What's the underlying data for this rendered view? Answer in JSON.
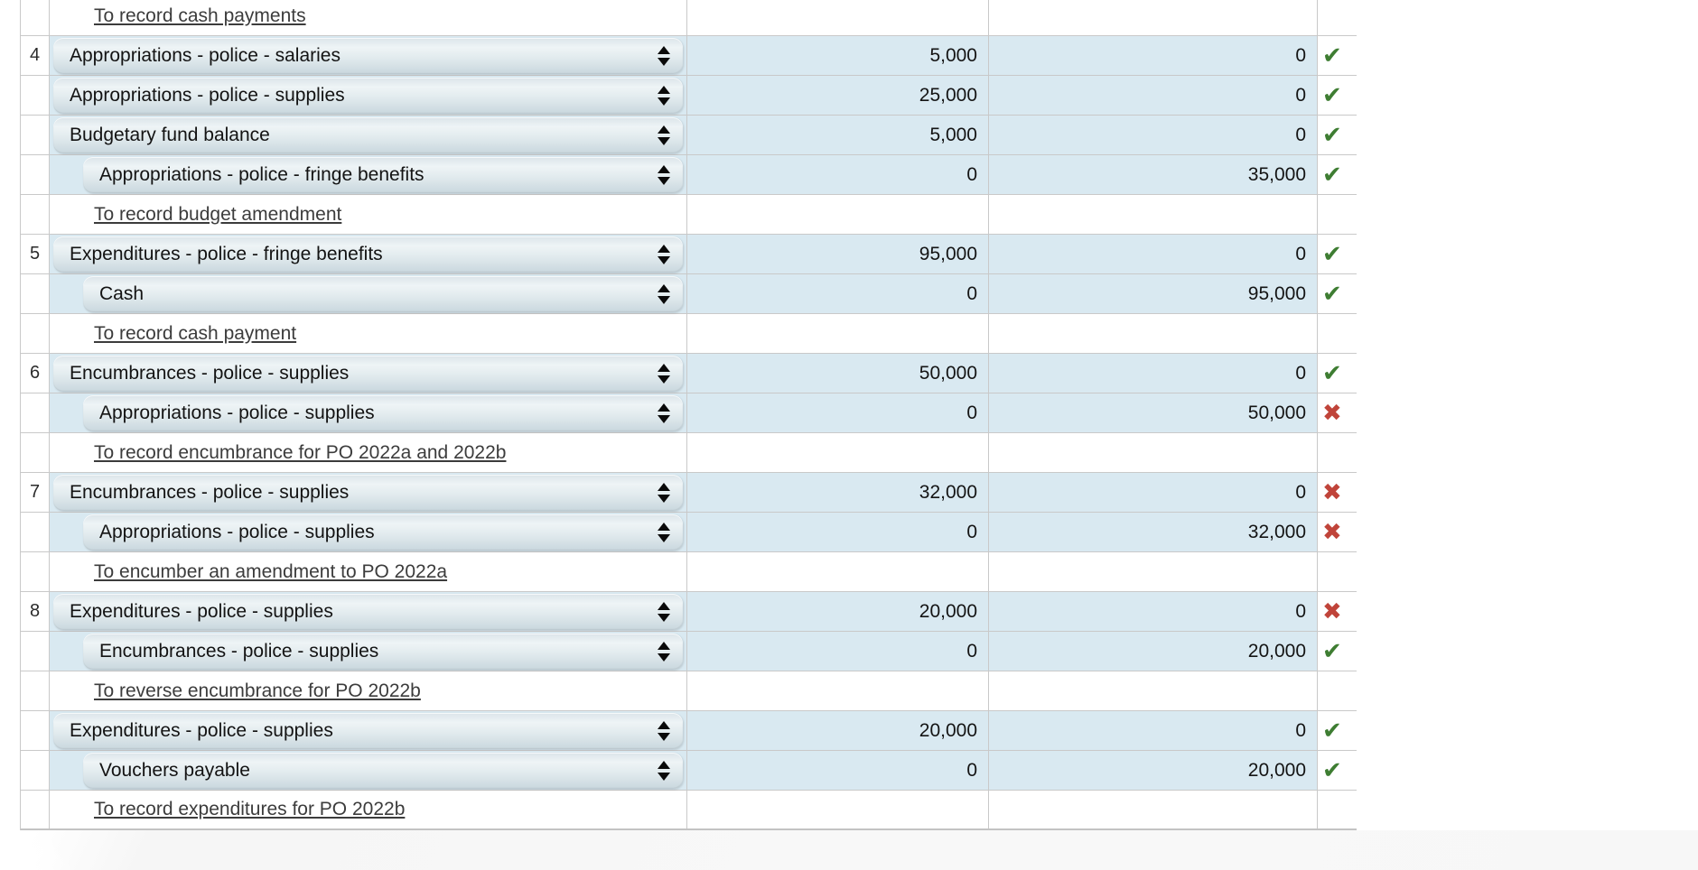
{
  "marks": {
    "correct": "✔",
    "incorrect": "✖"
  },
  "colors": {
    "correct_green": "#3e7d32",
    "incorrect_red": "#c0443a",
    "entry_row_blue": "#d9e9f1"
  },
  "table": {
    "rows": [
      {
        "type": "memo",
        "text": "To record cash payments"
      },
      {
        "type": "entry",
        "num": "4",
        "account": "Appropriations - police - salaries",
        "indent": false,
        "debit": "5,000",
        "credit": "0",
        "mark": "correct"
      },
      {
        "type": "entry",
        "num": "",
        "account": "Appropriations - police - supplies",
        "indent": false,
        "debit": "25,000",
        "credit": "0",
        "mark": "correct"
      },
      {
        "type": "entry",
        "num": "",
        "account": "Budgetary fund balance",
        "indent": false,
        "debit": "5,000",
        "credit": "0",
        "mark": "correct"
      },
      {
        "type": "entry",
        "num": "",
        "account": "Appropriations - police - fringe benefits",
        "indent": true,
        "debit": "0",
        "credit": "35,000",
        "mark": "correct"
      },
      {
        "type": "memo",
        "text": "To record budget amendment"
      },
      {
        "type": "entry",
        "num": "5",
        "account": "Expenditures - police - fringe benefits",
        "indent": false,
        "debit": "95,000",
        "credit": "0",
        "mark": "correct"
      },
      {
        "type": "entry",
        "num": "",
        "account": "Cash",
        "indent": true,
        "debit": "0",
        "credit": "95,000",
        "mark": "correct"
      },
      {
        "type": "memo",
        "text": "To record cash payment"
      },
      {
        "type": "entry",
        "num": "6",
        "account": "Encumbrances - police - supplies",
        "indent": false,
        "debit": "50,000",
        "credit": "0",
        "mark": "correct"
      },
      {
        "type": "entry",
        "num": "",
        "account": "Appropriations - police - supplies",
        "indent": true,
        "debit": "0",
        "credit": "50,000",
        "mark": "incorrect"
      },
      {
        "type": "memo",
        "text": "To record encumbrance for PO 2022a and 2022b"
      },
      {
        "type": "entry",
        "num": "7",
        "account": "Encumbrances - police - supplies",
        "indent": false,
        "debit": "32,000",
        "credit": "0",
        "mark": "incorrect"
      },
      {
        "type": "entry",
        "num": "",
        "account": "Appropriations - police - supplies",
        "indent": true,
        "debit": "0",
        "credit": "32,000",
        "mark": "incorrect"
      },
      {
        "type": "memo",
        "text": "To encumber an amendment to PO 2022a"
      },
      {
        "type": "entry",
        "num": "8",
        "account": "Expenditures - police - supplies",
        "indent": false,
        "debit": "20,000",
        "credit": "0",
        "mark": "incorrect"
      },
      {
        "type": "entry",
        "num": "",
        "account": "Encumbrances - police - supplies",
        "indent": true,
        "debit": "0",
        "credit": "20,000",
        "mark": "correct"
      },
      {
        "type": "memo",
        "text": "To reverse encumbrance for PO 2022b"
      },
      {
        "type": "entry",
        "num": "",
        "account": "Expenditures - police - supplies",
        "indent": false,
        "debit": "20,000",
        "credit": "0",
        "mark": "correct"
      },
      {
        "type": "entry",
        "num": "",
        "account": "Vouchers payable",
        "indent": true,
        "debit": "0",
        "credit": "20,000",
        "mark": "correct"
      },
      {
        "type": "memo",
        "text": "To record expenditures for PO 2022b"
      }
    ]
  }
}
